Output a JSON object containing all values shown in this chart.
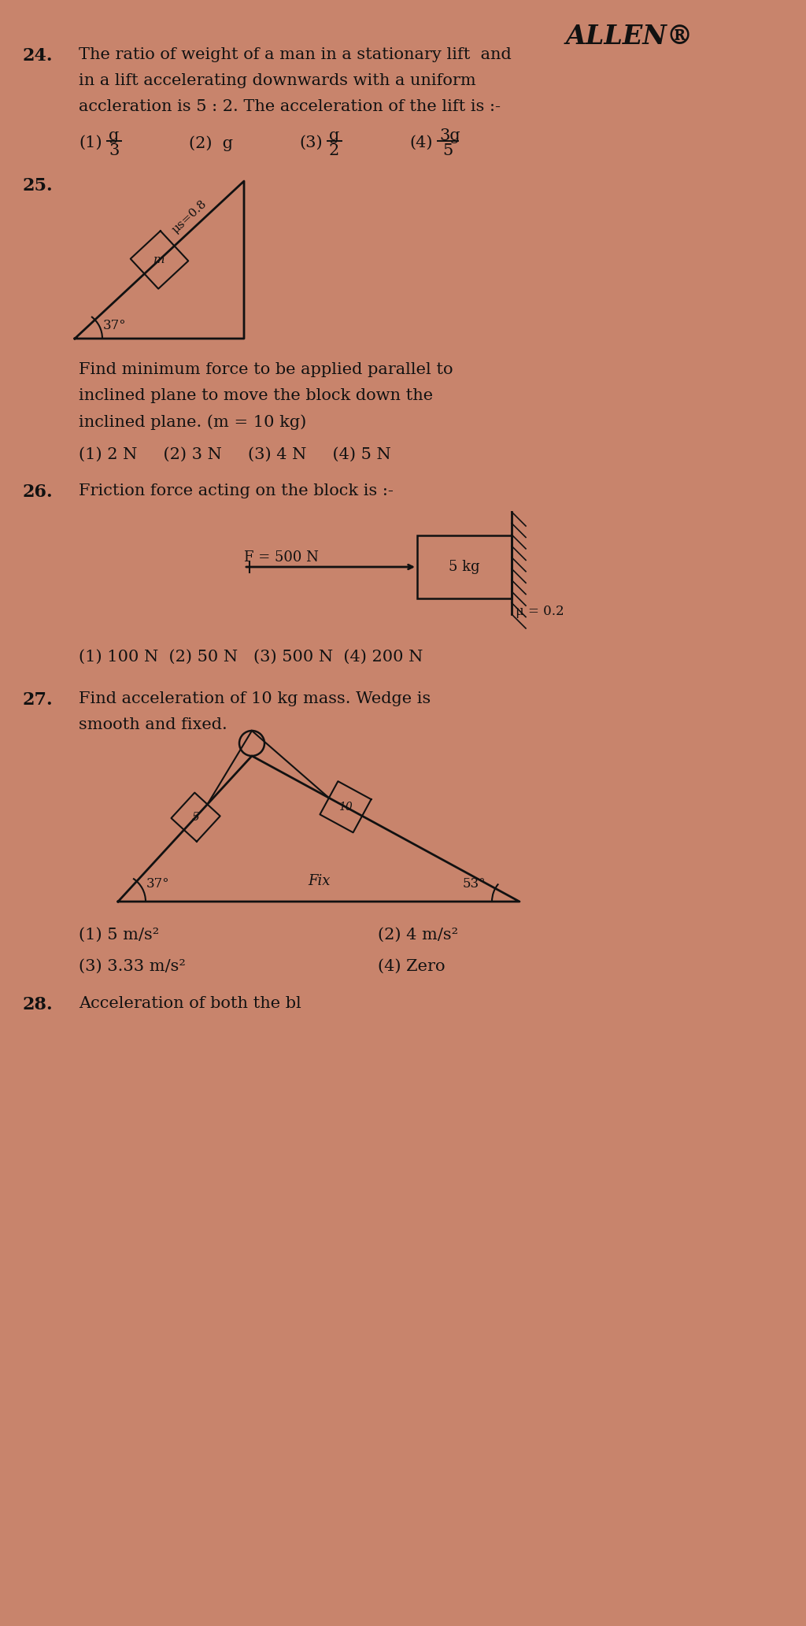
{
  "bg_color": "#c8846c",
  "text_color": "#111111",
  "allen_label": "ALLEN®",
  "q24_label": "24.",
  "q24_line1": "The ratio of weight of a man in a stationary lift  and",
  "q24_line2": "in a lift accelerating downwards with a uniform",
  "q24_line3": "accleration is 5 : 2. The acceleration of the lift is :-",
  "q25_label": "25.",
  "q25_desc1": "Find minimum force to be applied parallel to",
  "q25_desc2": "inclined plane to move the block down the",
  "q25_desc3": "inclined plane. (m = 10 kg)",
  "q25_opts": "(1) 2 N     (2) 3 N     (3) 4 N     (4) 5 N",
  "q26_label": "26.",
  "q26_text": "Friction force acting on the block is :-",
  "q26_opts": "(1) 100 N  (2) 50 N   (3) 500 N  (4) 200 N",
  "q27_label": "27.",
  "q27_line1": "Find acceleration of 10 kg mass. Wedge is",
  "q27_line2": "smooth and fixed.",
  "q27_opts1": "(1) 5 m/s²",
  "q27_opts2": "(2) 4 m/s²",
  "q27_opts3": "(3) 3.33 m/s²",
  "q27_opts4": "(4) Zero",
  "q28_label": "28.",
  "q28_text": "Acceleration of both the bl"
}
